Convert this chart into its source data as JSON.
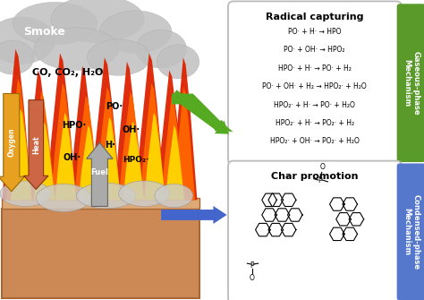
{
  "bg_color": "#ffffff",
  "box1_title": "Radical capturing",
  "box1_reactions": [
    "PO· + H· → HPO",
    "PO· + OH· → HPO₂",
    "HPO· + H· → PO· + H₂",
    "PO· + OH· + H₂ → HPO₂· + H₂O",
    "HPO₂· + H· → PO· + H₂O",
    "HPO₂· + H· → PO₂· + H₂",
    "HPO₂· + OH· → PO₂· + H₂O"
  ],
  "box2_title": "Char promotion",
  "green_label": "Gaseous-phase\nMechanism",
  "blue_label": "Condensed-phase\nMechanism",
  "smoke_label": "Smoke",
  "gases_label": "CO, CO₂, H₂O",
  "oxygen_label": "Oxygen",
  "heat_label": "Heat",
  "fuel_label": "Fuel",
  "green_color": "#5a9a2a",
  "blue_color_top": "#5577cc",
  "blue_color_bot": "#3355aa",
  "fire_orange": "#ff6600",
  "fire_yellow": "#ffdd00",
  "fire_red": "#dd2200",
  "smoke_color": "#c0c0c0",
  "ground_color": "#cc8855",
  "ground_edge": "#aa6633",
  "oxygen_color": "#e8a020",
  "heat_color": "#cc6644",
  "fuel_color": "#aaaaaa",
  "arrow_green": "#55aa22",
  "arrow_blue": "#4466cc"
}
